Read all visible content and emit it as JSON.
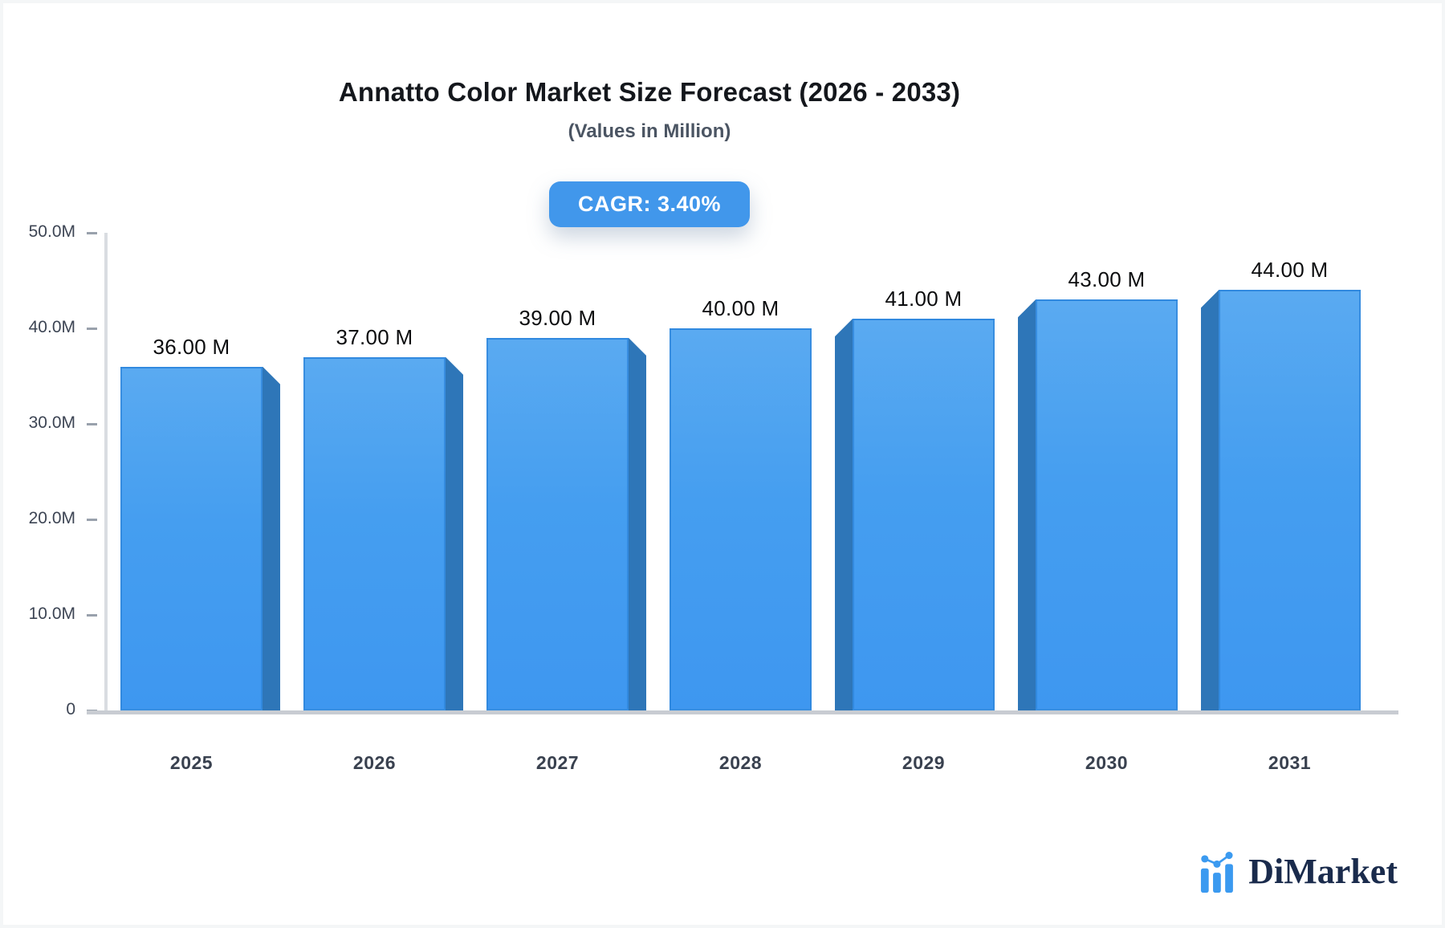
{
  "title": "Annatto Color Market Size Forecast (2026 - 2033)",
  "subtitle": "(Values in Million)",
  "cagr_badge": "CAGR: 3.40%",
  "logo": {
    "name": "DiMarket"
  },
  "chart_data": {
    "type": "bar",
    "title": "Annatto Color Market Size Forecast (2026 - 2033)",
    "subtitle": "(Values in Million)",
    "annotation": "CAGR: 3.40%",
    "categories": [
      "2025",
      "2026",
      "2027",
      "2028",
      "2029",
      "2030",
      "2031"
    ],
    "values": [
      36,
      37,
      39,
      40,
      41,
      43,
      44
    ],
    "bar_labels": [
      "36.00 M",
      "37.00 M",
      "39.00 M",
      "40.00 M",
      "41.00 M",
      "43.00 M",
      "44.00 M"
    ],
    "unit": "Million",
    "xlabel": "",
    "ylabel": "",
    "ylim": [
      0,
      50
    ],
    "grid": false,
    "legend": "none",
    "y_axis": [
      {
        "label": "50.0M",
        "value": 50
      },
      {
        "label": "40.0M",
        "value": 40
      },
      {
        "label": "30.0M",
        "value": 30
      },
      {
        "label": "20.0M",
        "value": 20
      },
      {
        "label": "10.0M",
        "value": 10
      },
      {
        "label": "0",
        "value": 0
      }
    ],
    "colors": {
      "bar_front_top": "#5aaaf1",
      "bar_front_bottom": "#3e97f0",
      "bar_side": "#2e76b8",
      "bar_border": "#2e84d9",
      "badge_bg": "#4197eb",
      "badge_text": "#ffffff",
      "axis_line": "#d9dce1",
      "baseline": "#c8ccd2",
      "tick": "#99a1ac",
      "label_text": "#3d4554",
      "logo_blue": "#3b9af0",
      "logo_navy": "#1a2b4c"
    }
  }
}
